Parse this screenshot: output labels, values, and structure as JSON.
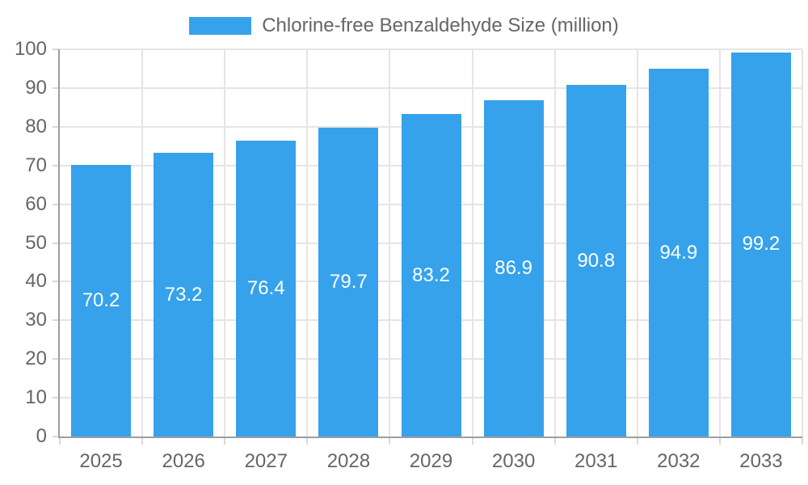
{
  "legend": {
    "label": "Chlorine-free Benzaldehyde Size (million)"
  },
  "chart_data": {
    "type": "bar",
    "title": "Chlorine-free Benzaldehyde Size (million)",
    "categories": [
      "2025",
      "2026",
      "2027",
      "2028",
      "2029",
      "2030",
      "2031",
      "2032",
      "2033"
    ],
    "values": [
      70.2,
      73.2,
      76.4,
      79.7,
      83.2,
      86.9,
      90.8,
      94.9,
      99.2
    ],
    "series": [
      {
        "name": "Chlorine-free Benzaldehyde Size (million)",
        "values": [
          70.2,
          73.2,
          76.4,
          79.7,
          83.2,
          86.9,
          90.8,
          94.9,
          99.2
        ]
      }
    ],
    "xlabel": "",
    "ylabel": "",
    "ylim": [
      0,
      100
    ],
    "ytick_step": 10,
    "yticks": [
      0,
      10,
      20,
      30,
      40,
      50,
      60,
      70,
      80,
      90,
      100
    ],
    "grid": true,
    "legend_position": "top",
    "bar_labels_visible": true,
    "colors": {
      "bar": "#36a2eb",
      "bar_label": "#ffffff",
      "tick_text": "#666666",
      "gridline": "#e5e5e5",
      "axis_line": "#9e9e9e",
      "background": "#ffffff"
    }
  }
}
